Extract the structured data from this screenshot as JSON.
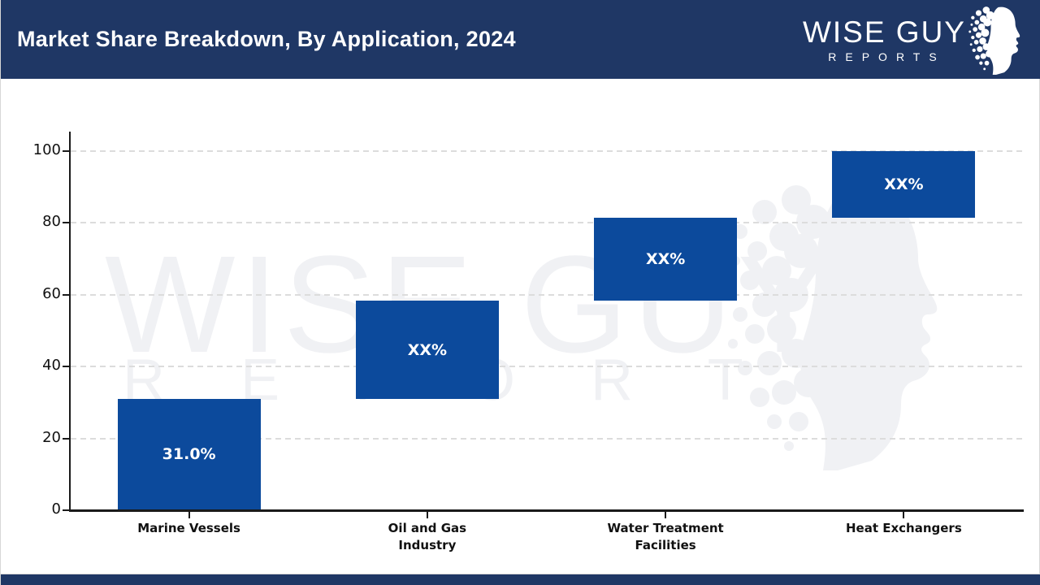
{
  "header": {
    "title": "Market Share Breakdown, By Application, 2024",
    "logo": {
      "line1": "WISE GUY",
      "line2": "REPORTS"
    }
  },
  "watermark": {
    "line1": "WISE GUY",
    "line2": "REPORTS"
  },
  "colors": {
    "header_bg": "#1f3765",
    "footer_bg": "#1f3765",
    "bar": "#0c4a9c",
    "bar_label_text": "#ffffff",
    "grid": "#dcdcdc",
    "axis": "#1a1a1a",
    "watermark": "#f0f1f4"
  },
  "chart_data": {
    "type": "bar",
    "subtype": "waterfall-stacked-percentage",
    "title": "Market Share Breakdown, By Application, 2024",
    "xlabel": "",
    "ylabel": "",
    "ylim": [
      0,
      100
    ],
    "yticks": [
      0,
      20,
      40,
      60,
      80,
      100
    ],
    "grid": "horizontal-dashed",
    "legend": "none",
    "categories": [
      "Marine Vessels",
      "Oil and Gas\nIndustry",
      "Water Treatment\nFacilities",
      "Heat Exchangers"
    ],
    "series": [
      {
        "name": "Market Share",
        "segments": [
          {
            "category": "Marine Vessels",
            "start": 0,
            "end": 31.0,
            "label": "31.0%"
          },
          {
            "category": "Oil and Gas Industry",
            "start": 31.0,
            "end": 58.3,
            "label": "XX%"
          },
          {
            "category": "Water Treatment Facilities",
            "start": 58.3,
            "end": 81.4,
            "label": "XX%"
          },
          {
            "category": "Heat Exchangers",
            "start": 81.4,
            "end": 100.0,
            "label": "XX%"
          }
        ]
      }
    ]
  }
}
